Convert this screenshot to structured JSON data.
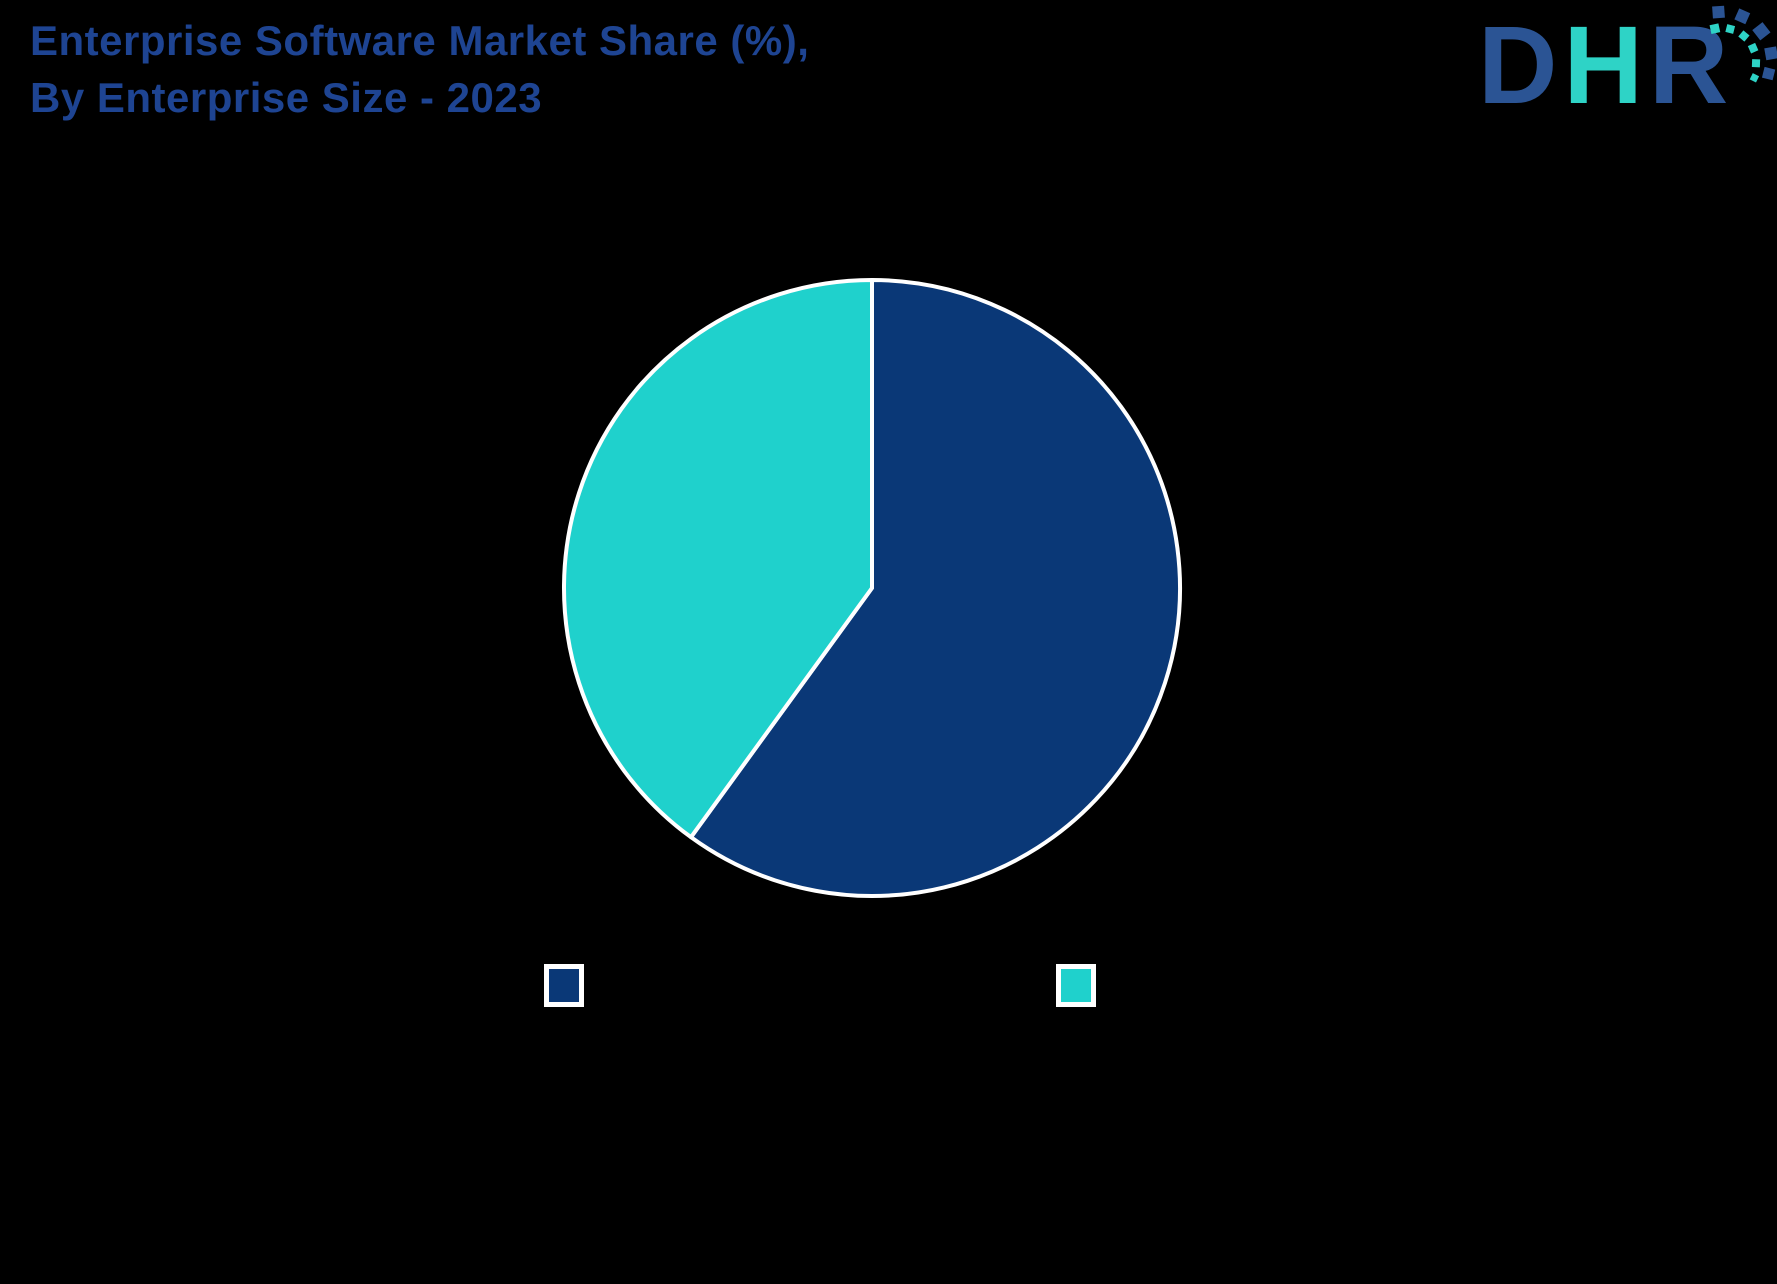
{
  "page": {
    "background_color": "#000000"
  },
  "header": {
    "title_line1": "Enterprise Software Market Share (%),",
    "title_line2": "By Enterprise Size - 2023",
    "title_color": "#1e4492"
  },
  "logo": {
    "text": "DHR",
    "letters": [
      {
        "char": "D",
        "color": "#2b5494"
      },
      {
        "char": "H",
        "color": "#2ed3c6"
      },
      {
        "char": "R",
        "color": "#2b5494"
      }
    ],
    "dot_colors": [
      "#2ed3c6",
      "#2b5494"
    ]
  },
  "chart_data": {
    "type": "pie",
    "title": "Enterprise Software Market Share (%), By Enterprise Size - 2023",
    "values": [
      60,
      40
    ],
    "colors": [
      "#0a3877",
      "#1fd1cc"
    ],
    "start_angle_deg": -90,
    "direction": "clockwise",
    "stroke_color": "#ffffff",
    "stroke_width": 4,
    "legend_position": "bottom",
    "legend_labels_visible": false,
    "legend_swatches": [
      {
        "color": "#0a3877"
      },
      {
        "color": "#1fd1cc"
      }
    ]
  }
}
